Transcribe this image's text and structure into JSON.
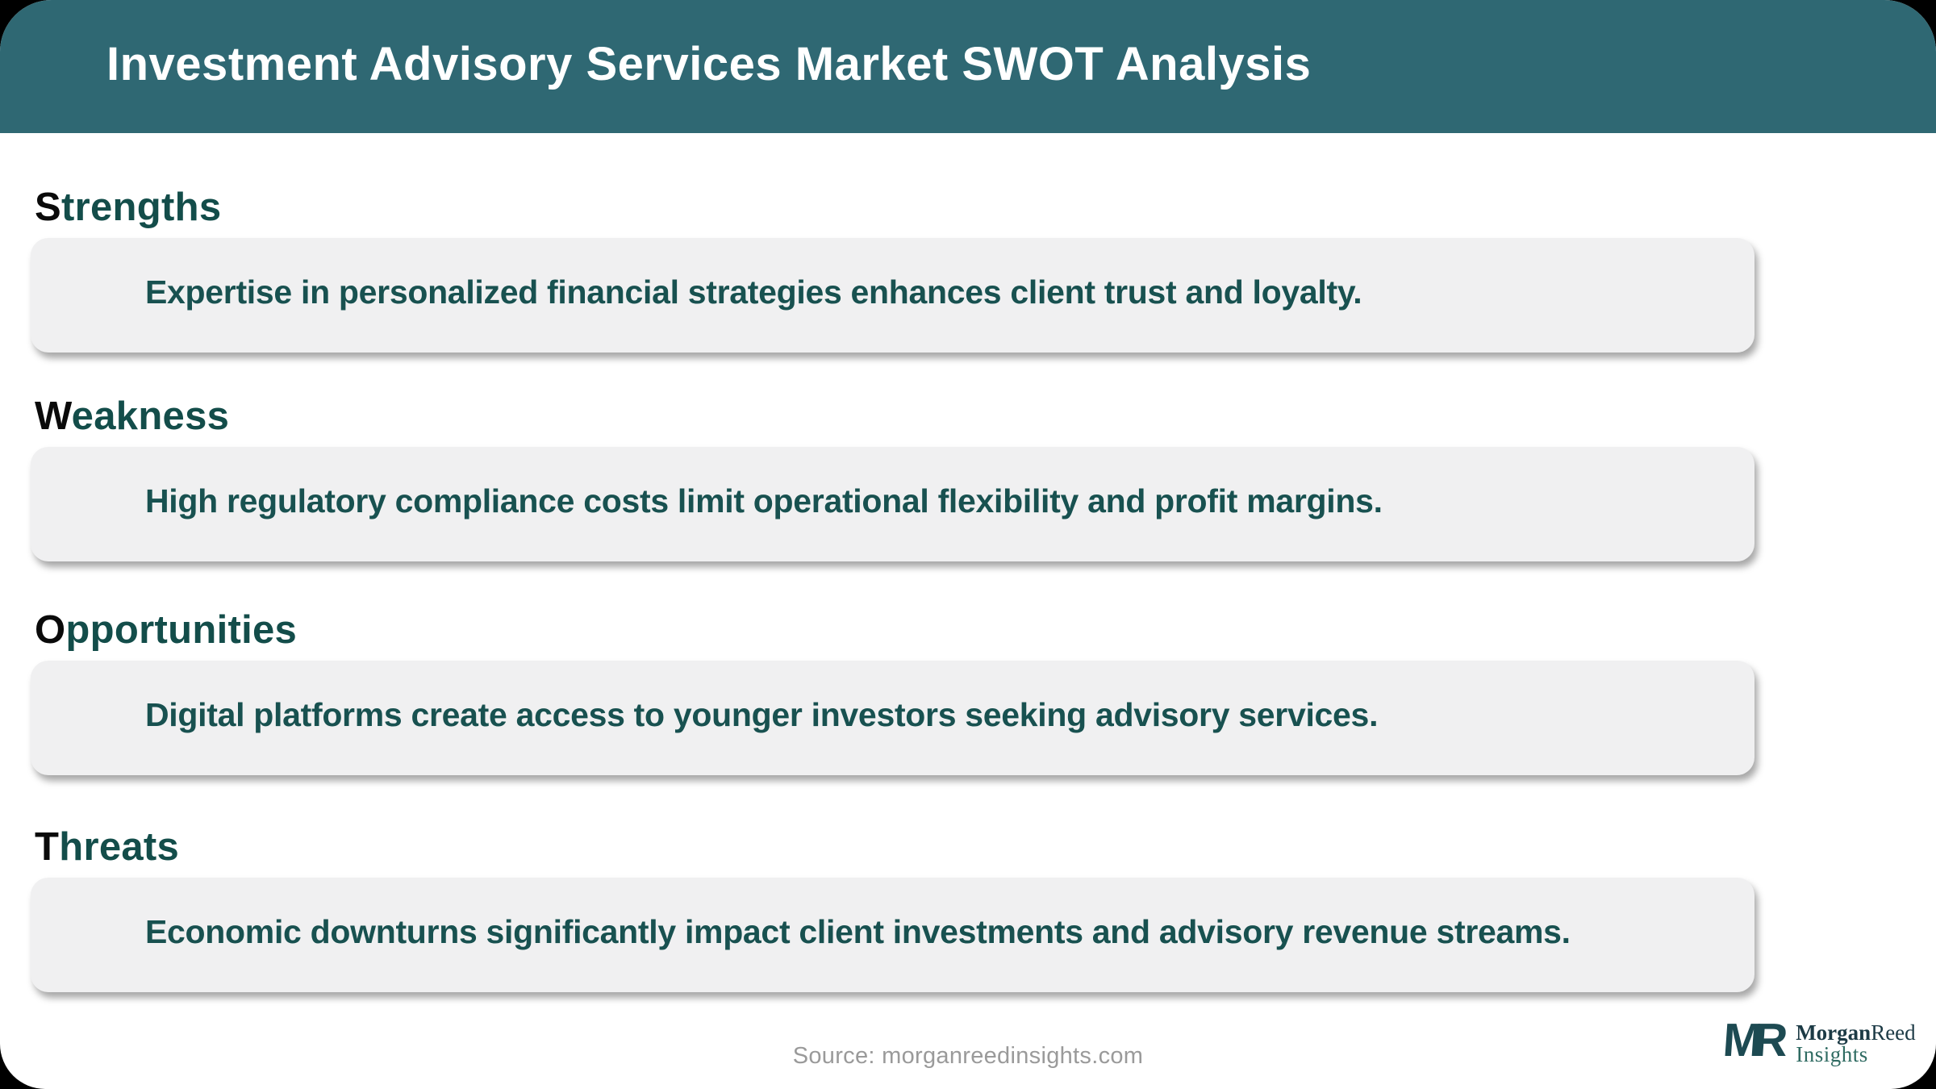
{
  "header": {
    "title": "Investment Advisory Services Market SWOT Analysis"
  },
  "sections": [
    {
      "title": "Strengths",
      "body": "Expertise in personalized financial strategies enhances client trust and loyalty."
    },
    {
      "title": "Weakness",
      "body": "High regulatory compliance costs limit operational flexibility and profit margins."
    },
    {
      "title": "Opportunities",
      "body": "Digital platforms create access to younger investors seeking advisory services."
    },
    {
      "title": "Threats",
      "body": "Economic downturns significantly impact client investments and advisory revenue streams."
    }
  ],
  "footer": {
    "source": "Source: morganreedinsights.com",
    "logo": {
      "monogram": "MR",
      "name_bold": "Morgan",
      "name_light": "Reed",
      "tagline": "Insights"
    }
  },
  "colors": {
    "outside_background": "#000000",
    "card_background": "#ffffff",
    "header_background": "#2f6873",
    "header_text": "#ffffff",
    "heading_text": "#134d4a",
    "heading_first_letter": "#0a0a0a",
    "body_text": "#185150",
    "box_background": "#f0f0f1",
    "source_text": "#9a9a9a",
    "logo_monogram": "#1d4a52",
    "logo_name": "#1c3a45",
    "logo_tagline": "#2f6b62"
  }
}
